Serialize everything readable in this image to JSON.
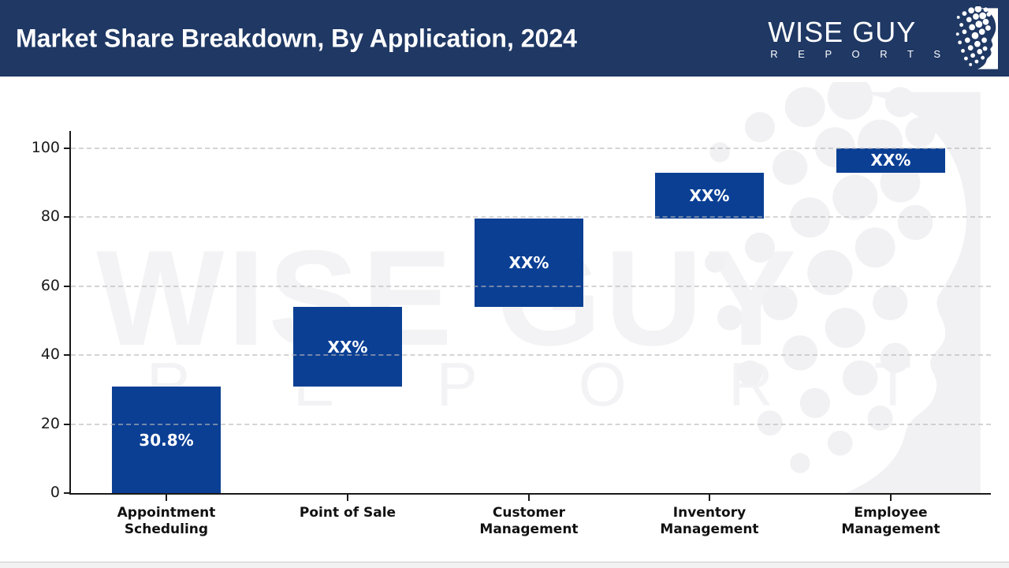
{
  "header": {
    "title": "Market Share Breakdown, By Application, 2024"
  },
  "logo": {
    "primary": "WISE GUY",
    "secondary": "R E P O R T S"
  },
  "watermark": {
    "primary": "WISE GUY",
    "secondary": "R E P O R T S"
  },
  "colors": {
    "header_bg": "#1f3864",
    "bar": "#0a3f94",
    "axis": "#1a1a1a",
    "grid": "#bbbbbb",
    "watermark": "#f3f3f5",
    "background": "#ffffff",
    "bar_label": "#ffffff"
  },
  "chart_data": {
    "type": "bar",
    "subtype": "floating-segment waterfall of cumulative market share",
    "title": "Market Share Breakdown, By Application, 2024",
    "xlabel": "",
    "ylabel": "",
    "ylim": [
      0,
      100
    ],
    "yticks": [
      0,
      20,
      40,
      60,
      80,
      100
    ],
    "grid": "horizontal dashed, drawn over bars",
    "legend": "none",
    "bar_color": "#0a3f94",
    "categories": [
      "Appointment Scheduling",
      "Point of Sale",
      "Customer Management",
      "Inventory Management",
      "Employee Management"
    ],
    "segments": [
      {
        "category": "Appointment Scheduling",
        "category_lines": [
          "Appointment",
          "Scheduling"
        ],
        "start": 0,
        "end": 30.8,
        "label": "30.8%"
      },
      {
        "category": "Point of Sale",
        "category_lines": [
          "Point of Sale"
        ],
        "start": 30.8,
        "end": 54.0,
        "label": "XX%"
      },
      {
        "category": "Customer Management",
        "category_lines": [
          "Customer",
          "Management"
        ],
        "start": 54.0,
        "end": 79.5,
        "label": "XX%"
      },
      {
        "category": "Inventory Management",
        "category_lines": [
          "Inventory",
          "Management"
        ],
        "start": 79.5,
        "end": 92.7,
        "label": "XX%"
      },
      {
        "category": "Employee Management",
        "category_lines": [
          "Employee",
          "Management"
        ],
        "start": 92.7,
        "end": 100,
        "label": "XX%"
      }
    ]
  }
}
